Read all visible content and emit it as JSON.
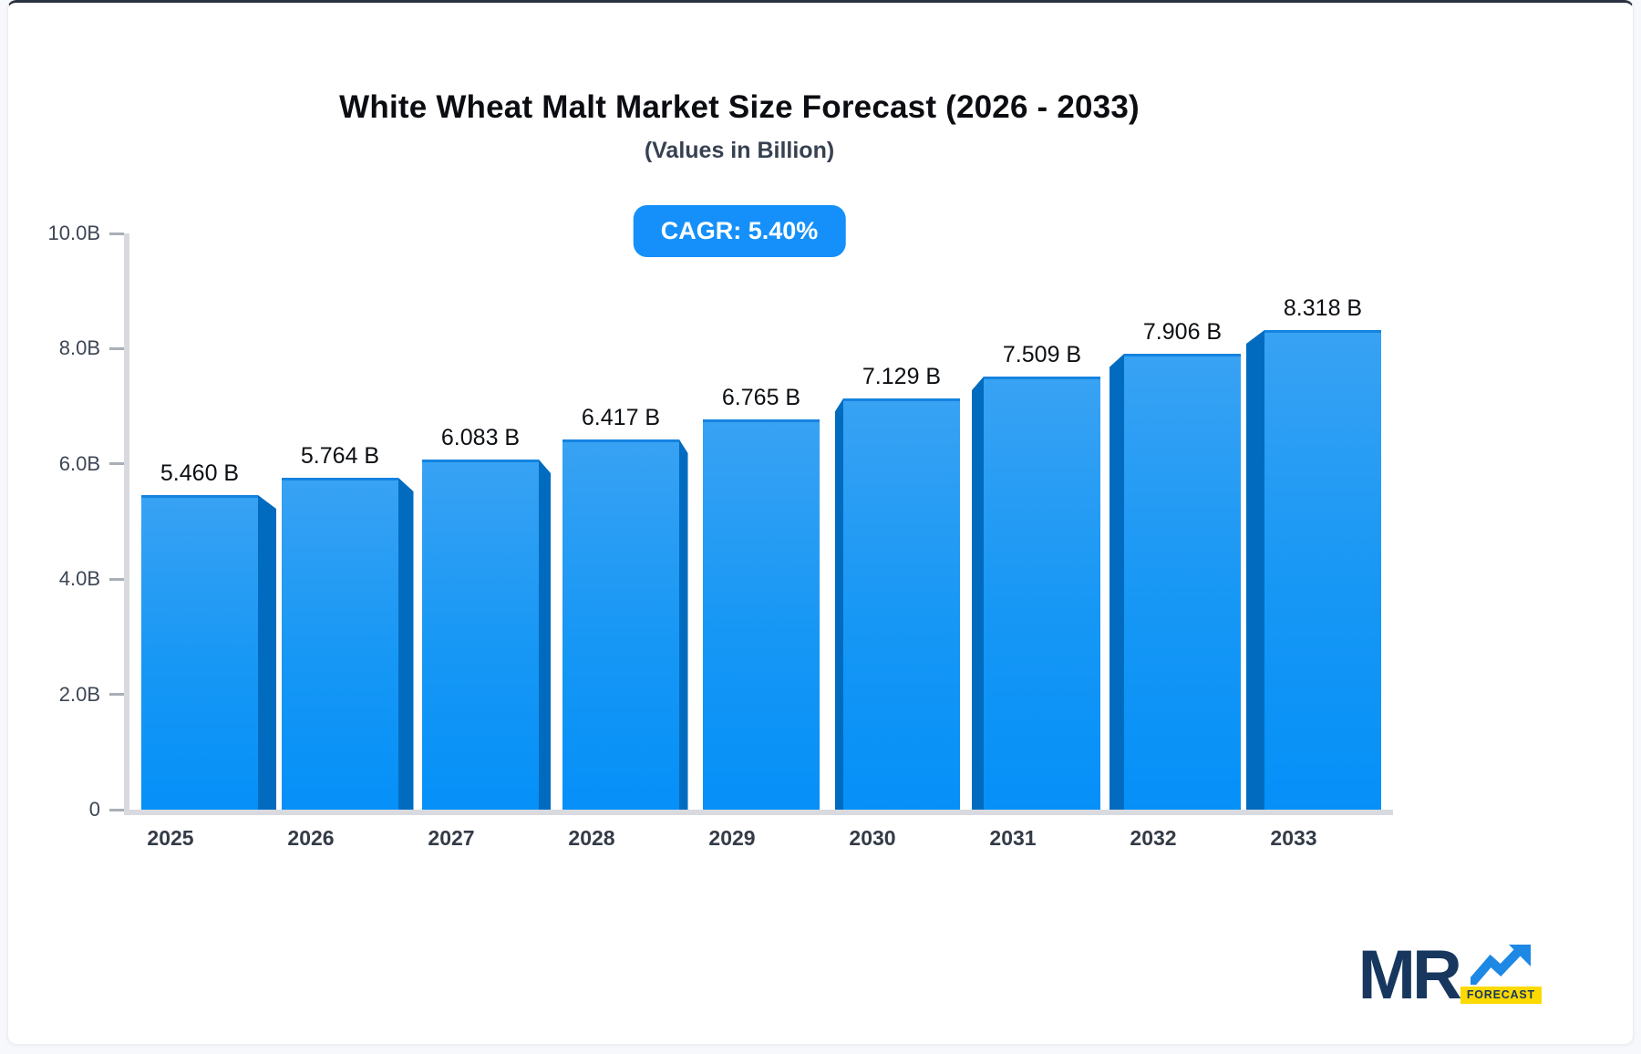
{
  "header": {
    "title": "White Wheat Malt Market Size Forecast (2026 - 2033)",
    "subtitle": "(Values in Billion)",
    "cagr_badge": "CAGR: 5.40%"
  },
  "chart_data": {
    "type": "bar",
    "title": "White Wheat Malt Market Size Forecast (2026 - 2033)",
    "subtitle": "(Values in Billion)",
    "unit": "Billion",
    "cagr_percent": 5.4,
    "categories": [
      "2025",
      "2026",
      "2027",
      "2028",
      "2029",
      "2030",
      "2031",
      "2032",
      "2033"
    ],
    "values": [
      5.46,
      5.764,
      6.083,
      6.417,
      6.765,
      7.129,
      7.509,
      7.906,
      8.318
    ],
    "value_labels": [
      "5.460 B",
      "5.764 B",
      "6.083 B",
      "6.417 B",
      "6.765 B",
      "7.129 B",
      "7.509 B",
      "7.906 B",
      "8.318 B"
    ],
    "xlabel": "",
    "ylabel": "",
    "ylim": [
      0,
      10
    ],
    "yticks": [
      {
        "label": "10.0B",
        "value": 10
      },
      {
        "label": "8.0B",
        "value": 8
      },
      {
        "label": "6.0B",
        "value": 6
      },
      {
        "label": "4.0B",
        "value": 4
      },
      {
        "label": "2.0B",
        "value": 2
      },
      {
        "label": "0",
        "value": 0
      }
    ],
    "grid": false,
    "legend": "none",
    "colors": {
      "bar_face_top": "#38a2f3",
      "bar_face_bottom": "#0590f8",
      "bar_side_shade": "#016cbf",
      "bar_top_edge": "#1583e0",
      "accent_badge": "#1590fa",
      "axis_line": "#d9dadf"
    }
  },
  "logo": {
    "mr_text": "MR",
    "forecast_text": "FORECAST",
    "navy": "#17375f",
    "yellow": "#fcd900",
    "arrow_blue": "#1e88e5"
  }
}
